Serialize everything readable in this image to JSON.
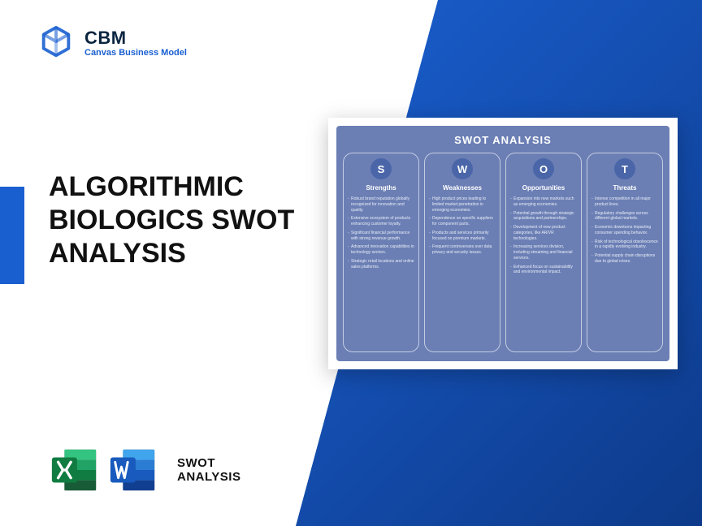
{
  "logo": {
    "title": "CBM",
    "subtitle": "Canvas Business Model",
    "mark_color": "#1a5fd0"
  },
  "main_title": "ALGORITHMIC BIOLOGICS SWOT ANALYSIS",
  "accent_color": "#1a5fd0",
  "diag_gradient": {
    "from": "#1a5fd0",
    "to": "#0d3a8a"
  },
  "footer": {
    "line1": "SWOT",
    "line2": "ANALYSIS",
    "excel_colors": {
      "dark": "#107c41",
      "light": "#21a366"
    },
    "word_colors": {
      "dark": "#185abd",
      "light": "#41a5ee"
    }
  },
  "swot_card": {
    "title": "SWOT ANALYSIS",
    "bg_color": "#6b7fb5",
    "circle_color": "#4a66a8",
    "columns": [
      {
        "letter": "S",
        "label": "Strengths",
        "items": [
          "Robust brand reputation globally recognized for innovation and quality.",
          "Extensive ecosystem of products enhancing customer loyalty.",
          "Significant financial performance with strong revenue growth.",
          "Advanced innovation capabilities in technology sectors.",
          "Strategic retail locations and online sales platforms."
        ]
      },
      {
        "letter": "W",
        "label": "Weaknesses",
        "items": [
          "High product prices leading to limited market penetration in emerging economies.",
          "Dependence on specific suppliers for component parts.",
          "Products and services primarily focused on premium markets.",
          "Frequent controversies over data privacy and security issues."
        ]
      },
      {
        "letter": "O",
        "label": "Opportunities",
        "items": [
          "Expansion into new markets such as emerging economies.",
          "Potential growth through strategic acquisitions and partnerships.",
          "Development of new product categories, like AR/VR technologies.",
          "Increasing services division, including streaming and financial services.",
          "Enhanced focus on sustainability and environmental impact."
        ]
      },
      {
        "letter": "T",
        "label": "Threats",
        "items": [
          "Intense competition in all major product lines.",
          "Regulatory challenges across different global markets.",
          "Economic downturns impacting consumer spending behavior.",
          "Risk of technological obsolescence in a rapidly evolving industry.",
          "Potential supply chain disruptions due to global crises."
        ]
      }
    ]
  }
}
